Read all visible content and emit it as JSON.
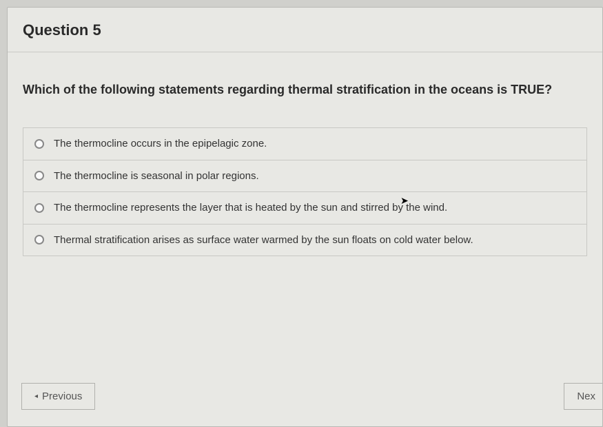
{
  "header": {
    "title": "Question 5"
  },
  "question": {
    "prompt": "Which of the following statements regarding thermal stratification in the oceans is TRUE?"
  },
  "answers": [
    {
      "text": "The thermocline occurs in the epipelagic zone."
    },
    {
      "text": "The thermocline is seasonal in polar regions."
    },
    {
      "text": "The thermocline represents the layer that is heated by the sun and stirred by the wind."
    },
    {
      "text": "Thermal stratification arises as surface water warmed by the sun floats on cold water below."
    }
  ],
  "nav": {
    "previous_label": "Previous",
    "next_label": "Nex"
  },
  "colors": {
    "border": "#c8c8c4",
    "background": "#e8e8e4",
    "text_primary": "#2a2a2a",
    "text_secondary": "#333"
  }
}
